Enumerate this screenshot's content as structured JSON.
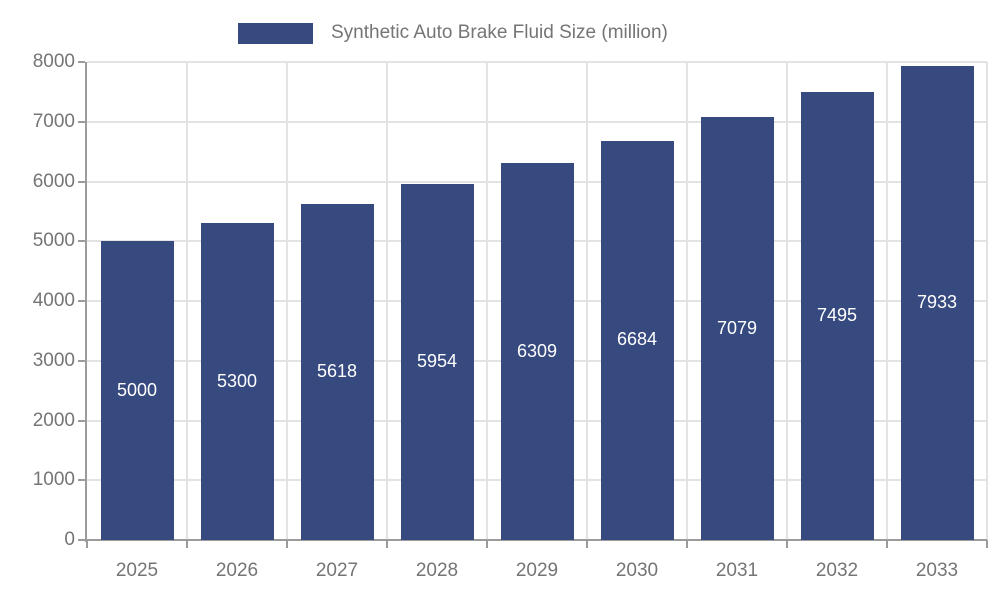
{
  "legend": {
    "label": "Synthetic Auto Brake Fluid Size (million)"
  },
  "chart_data": {
    "type": "bar",
    "title": "Synthetic Auto Brake Fluid Size (million)",
    "categories": [
      "2025",
      "2026",
      "2027",
      "2028",
      "2029",
      "2030",
      "2031",
      "2032",
      "2033"
    ],
    "values": [
      5000,
      5300,
      5618,
      5954,
      6309,
      6684,
      7079,
      7495,
      7933
    ],
    "xlabel": "",
    "ylabel": "",
    "ylim": [
      0,
      8000
    ],
    "ytick_step": 1000,
    "ytick_labels": [
      "0",
      "1000",
      "2000",
      "3000",
      "4000",
      "5000",
      "6000",
      "7000",
      "8000"
    ],
    "grid": true,
    "legend_position": "top-center",
    "value_labels": "inside-middle",
    "colors": {
      "bar": "#374a80",
      "value_label": "#ffffff",
      "axis": "#9b9b9b",
      "grid": "#e3e3e3",
      "tick_text": "#757575",
      "legend_text": "#757575",
      "background": "#ffffff"
    }
  }
}
